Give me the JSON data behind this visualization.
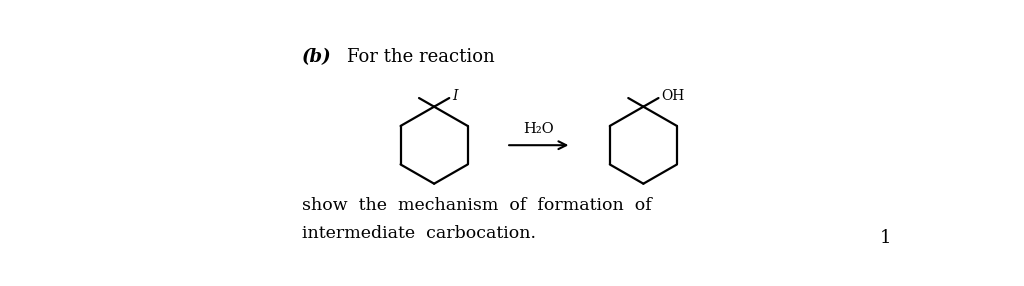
{
  "background_color": "#ffffff",
  "title_italic": "(b)",
  "title_text": "For the reaction",
  "bottom_text_line1": "show  the  mechanism  of  formation  of",
  "bottom_text_line2": "intermediate  carbocation.",
  "arrow_label": "H₂O",
  "page_number": "1",
  "fig_width": 10.24,
  "fig_height": 2.86,
  "dpi": 100
}
